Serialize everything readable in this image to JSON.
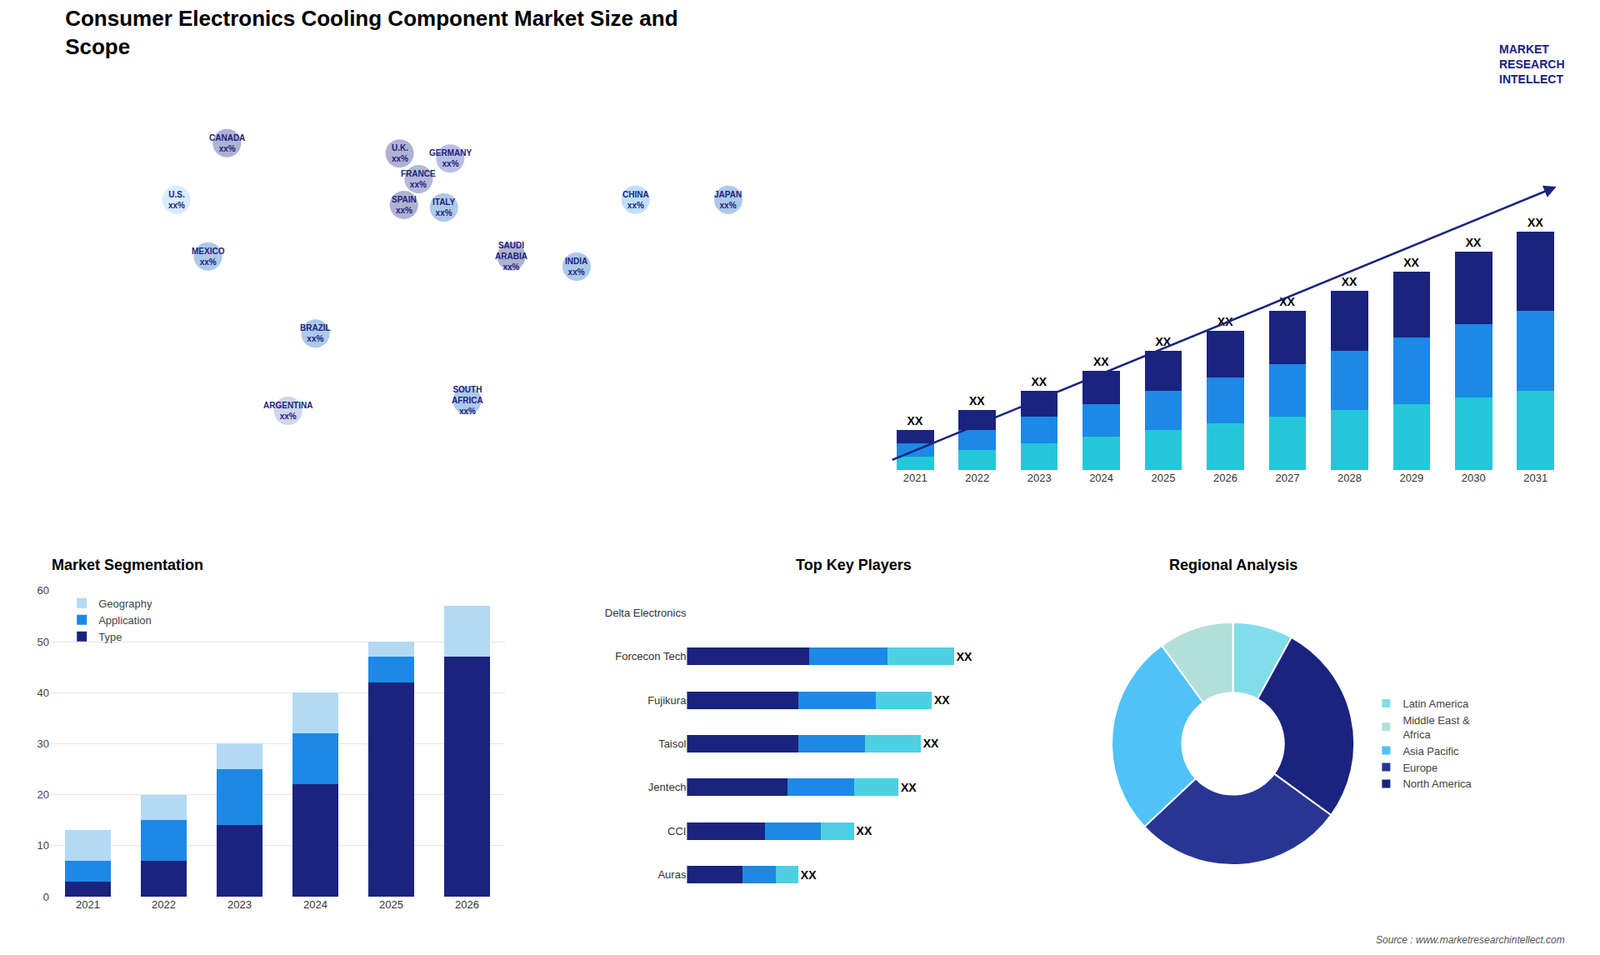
{
  "title": "Consumer Electronics Cooling Component Market Size and\nScope",
  "annotations": [
    "MARKET\nRESEARCH\nINTELLECT",
    "Source : www.marketresearchintellect.com"
  ],
  "chart_data": [
    {
      "type": "map",
      "xlim": [
        -180,
        180
      ],
      "ylim": [
        -65,
        82
      ],
      "tick_labels": false,
      "grid": false,
      "annotations": [
        {
          "text": "CANADA\nxx%",
          "x": -96,
          "y": 62
        },
        {
          "text": "U.S.\nxx%",
          "x": -120,
          "y": 40
        },
        {
          "text": "MEXICO\nxx%",
          "x": -105,
          "y": 18
        },
        {
          "text": "BRAZIL\nxx%",
          "x": -54,
          "y": -12
        },
        {
          "text": "ARGENTINA\nxx%",
          "x": -67,
          "y": -42
        },
        {
          "text": "U.K.\nxx%",
          "x": -14,
          "y": 58
        },
        {
          "text": "FRANCE\nxx%",
          "x": -5,
          "y": 48
        },
        {
          "text": "GERMANY\nxx%",
          "x": 10,
          "y": 56
        },
        {
          "text": "SPAIN\nxx%",
          "x": -12,
          "y": 38
        },
        {
          "text": "ITALY\nxx%",
          "x": 7,
          "y": 37
        },
        {
          "text": "SAUDI\nARABIA\nxx%",
          "x": 39,
          "y": 18
        },
        {
          "text": "SOUTH\nAFRICA\nxx%",
          "x": 18,
          "y": -38
        },
        {
          "text": "INDIA\nxx%",
          "x": 70,
          "y": 14
        },
        {
          "text": "CHINA\nxx%",
          "x": 98,
          "y": 40
        },
        {
          "text": "JAPAN\nxx%",
          "x": 142,
          "y": 40
        }
      ],
      "colors": [
        "#1a237e",
        "#90caf9",
        "#1565c0",
        "#1565c0",
        "#7986cb",
        "#1a237e",
        "#283593",
        "#3949ab",
        "#1a237e",
        "#1565c0",
        "#1a237e",
        "#1565c0",
        "#1565c0",
        "#42a5f5",
        "#1565c0"
      ]
    },
    {
      "type": "bar",
      "stacked": true,
      "categories": [
        "2021",
        "2022",
        "2023",
        "2024",
        "2025",
        "2026",
        "2027",
        "2028",
        "2029",
        "2030",
        "2031"
      ],
      "series": [
        {
          "color": "#26c6da",
          "values": [
            2,
            3,
            4,
            5,
            6,
            7,
            8,
            9,
            10,
            11,
            12
          ]
        },
        {
          "color": "#1e88e5",
          "values": [
            2,
            3,
            4,
            5,
            6,
            7,
            8,
            9,
            10,
            11,
            12
          ]
        },
        {
          "color": "#1a237e",
          "values": [
            2,
            3,
            4,
            5,
            6,
            7,
            8,
            9,
            10,
            11,
            12
          ],
          "value_labels": [
            "XX",
            "XX",
            "XX",
            "XX",
            "XX",
            "XX",
            "XX",
            "XX",
            "XX",
            "XX",
            "XX"
          ]
        }
      ],
      "ylim": [
        0,
        48.6
      ],
      "tick_labels": "x",
      "grid": false
    },
    {
      "type": "bar",
      "title": "Market Segmentation",
      "stacked": true,
      "categories": [
        "2021",
        "2022",
        "2023",
        "2024",
        "2025",
        "2026"
      ],
      "series": [
        {
          "name": "Type",
          "color": "#1a237e",
          "values": [
            3,
            7,
            14,
            22,
            42,
            47
          ]
        },
        {
          "name": "Application",
          "color": "#1e88e5",
          "values": [
            4,
            8,
            11,
            10,
            5,
            0
          ]
        },
        {
          "name": "Geography",
          "color": "#b3d9f5",
          "values": [
            6,
            5,
            5,
            8,
            3,
            10
          ]
        }
      ],
      "ylim": [
        0,
        60
      ],
      "yticks": [
        0,
        10,
        20,
        30,
        40,
        50,
        60
      ],
      "grid": true,
      "legend": "upper left"
    },
    {
      "type": "bar",
      "title": "Top Key Players",
      "orientation": "horizontal",
      "stacked": true,
      "categories": [
        "Delta Electronics",
        "Forcecon Tech",
        "Fujikura",
        "Taisol",
        "Jentech",
        "CCI",
        "Auras"
      ],
      "series": [
        {
          "color": "#1a237e",
          "values": [
            0,
            5.5,
            5.0,
            5.0,
            4.5,
            3.5,
            2.5
          ]
        },
        {
          "color": "#1e88e5",
          "values": [
            0,
            3.5,
            3.5,
            3.0,
            3.0,
            2.5,
            1.5
          ]
        },
        {
          "color": "#4dd0e1",
          "values": [
            0,
            3.0,
            2.5,
            2.5,
            2.0,
            1.5,
            1.0
          ],
          "value_labels": [
            null,
            "XX",
            "XX",
            "XX",
            "XX",
            "XX",
            "XX"
          ]
        }
      ],
      "xlim": [
        0,
        15
      ],
      "tick_labels": "y",
      "grid": false
    },
    {
      "type": "donut",
      "title": "Regional Analysis",
      "categories": [
        "Latin America",
        "Middle East &\nAfrica",
        "Asia Pacific",
        "Europe",
        "North America"
      ],
      "values": [
        0.08,
        0.1,
        0.27,
        0.28,
        0.27
      ],
      "colors": [
        "#80deea",
        "#b2dfdb",
        "#4fc3f7",
        "#283593",
        "#1a237e"
      ],
      "legend": "right"
    }
  ]
}
